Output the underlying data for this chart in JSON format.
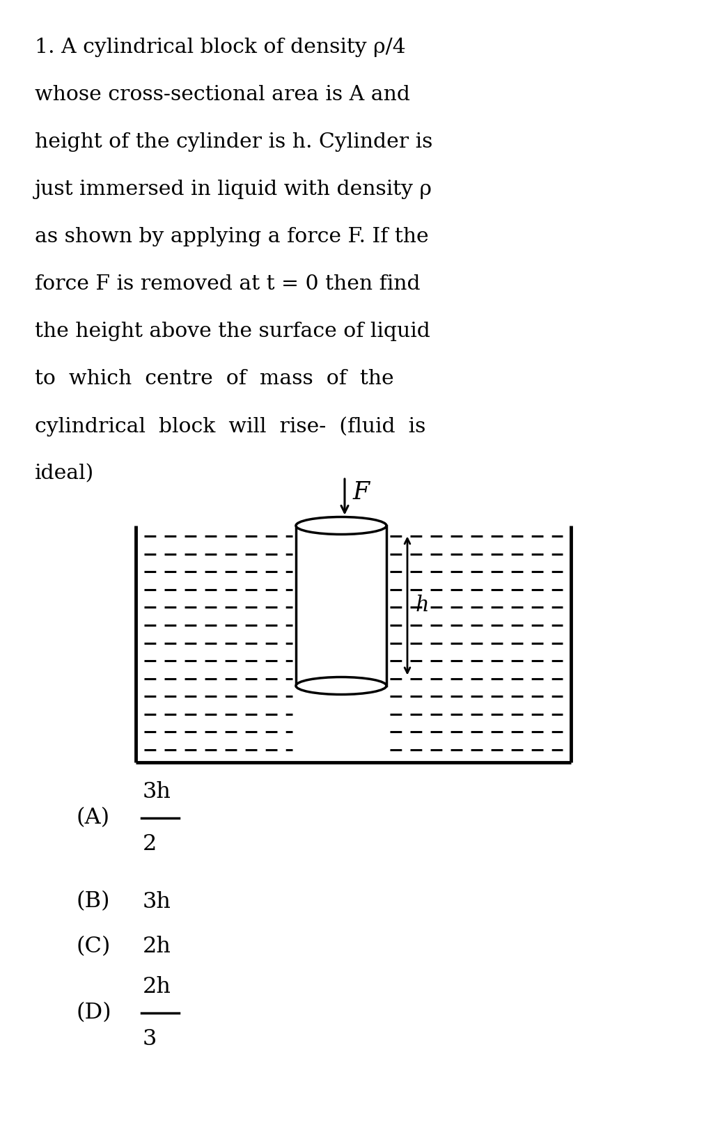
{
  "background_color": "#ffffff",
  "question_lines": [
    "1. A cylindrical block of density ρ/4",
    "whose cross-sectional area is A and",
    "height of the cylinder is h. Cylinder is",
    "just immersed in liquid with density ρ",
    "as shown by applying a force F. If the",
    "force F is removed at t = 0 then find",
    "the height above the surface of liquid",
    "to  which  centre  of  mass  of  the",
    "cylindrical  block  will  rise-  (fluid  is",
    "ideal)"
  ],
  "options": [
    {
      "label": "(A)",
      "numerator": "3h",
      "denominator": "2",
      "is_fraction": true
    },
    {
      "label": "(B)",
      "text": "3h",
      "is_fraction": false
    },
    {
      "label": "(C)",
      "text": "2h",
      "is_fraction": false
    },
    {
      "label": "(D)",
      "numerator": "2h",
      "denominator": "3",
      "is_fraction": true
    }
  ],
  "fig_width": 10.24,
  "fig_height": 16.36,
  "text_color": "#000000",
  "question_fontsize": 21.5,
  "option_fontsize": 23
}
